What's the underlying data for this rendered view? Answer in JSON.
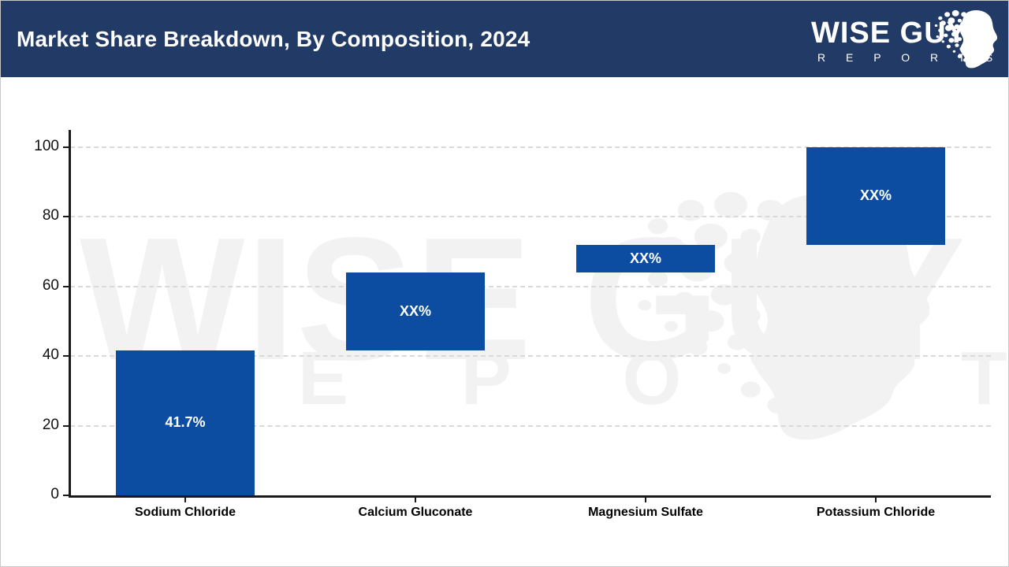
{
  "header": {
    "title": "Market Share Breakdown, By Composition, 2024",
    "logo": {
      "name": "Wise Guy Reports",
      "line1": "WISE GUY",
      "line2": "R E P O R T S"
    }
  },
  "watermark": {
    "line1": "WISE GUY",
    "line2": "R E P O R T S"
  },
  "colors": {
    "header_bg": "#223a66",
    "bar_blue": "#0c4da2",
    "gridline": "#d9d9d9",
    "axis": "#1a1a1a",
    "watermark_gray": "#f2f2f2",
    "title_text": "#ffffff"
  },
  "chart_data": {
    "type": "bar",
    "subtype": "waterfall",
    "title": "Market Share Breakdown, By Composition, 2024",
    "categories": [
      "Sodium Chloride",
      "Calcium Gluconate",
      "Magnesium Sulfate",
      "Potassium Chloride"
    ],
    "segments": [
      {
        "start": 0,
        "end": 41.7,
        "label": "41.7%"
      },
      {
        "start": 41.7,
        "end": 64,
        "label": "XX%"
      },
      {
        "start": 64,
        "end": 72,
        "label": "XX%"
      },
      {
        "start": 72,
        "end": 100,
        "label": "XX%"
      }
    ],
    "yticks": [
      0,
      20,
      40,
      60,
      80,
      100
    ],
    "ylim": [
      0,
      100
    ],
    "xlabel": "",
    "ylabel": "",
    "grid": true,
    "legend": false,
    "bar_color": "#0c4da2",
    "value_labels_inside": true
  }
}
